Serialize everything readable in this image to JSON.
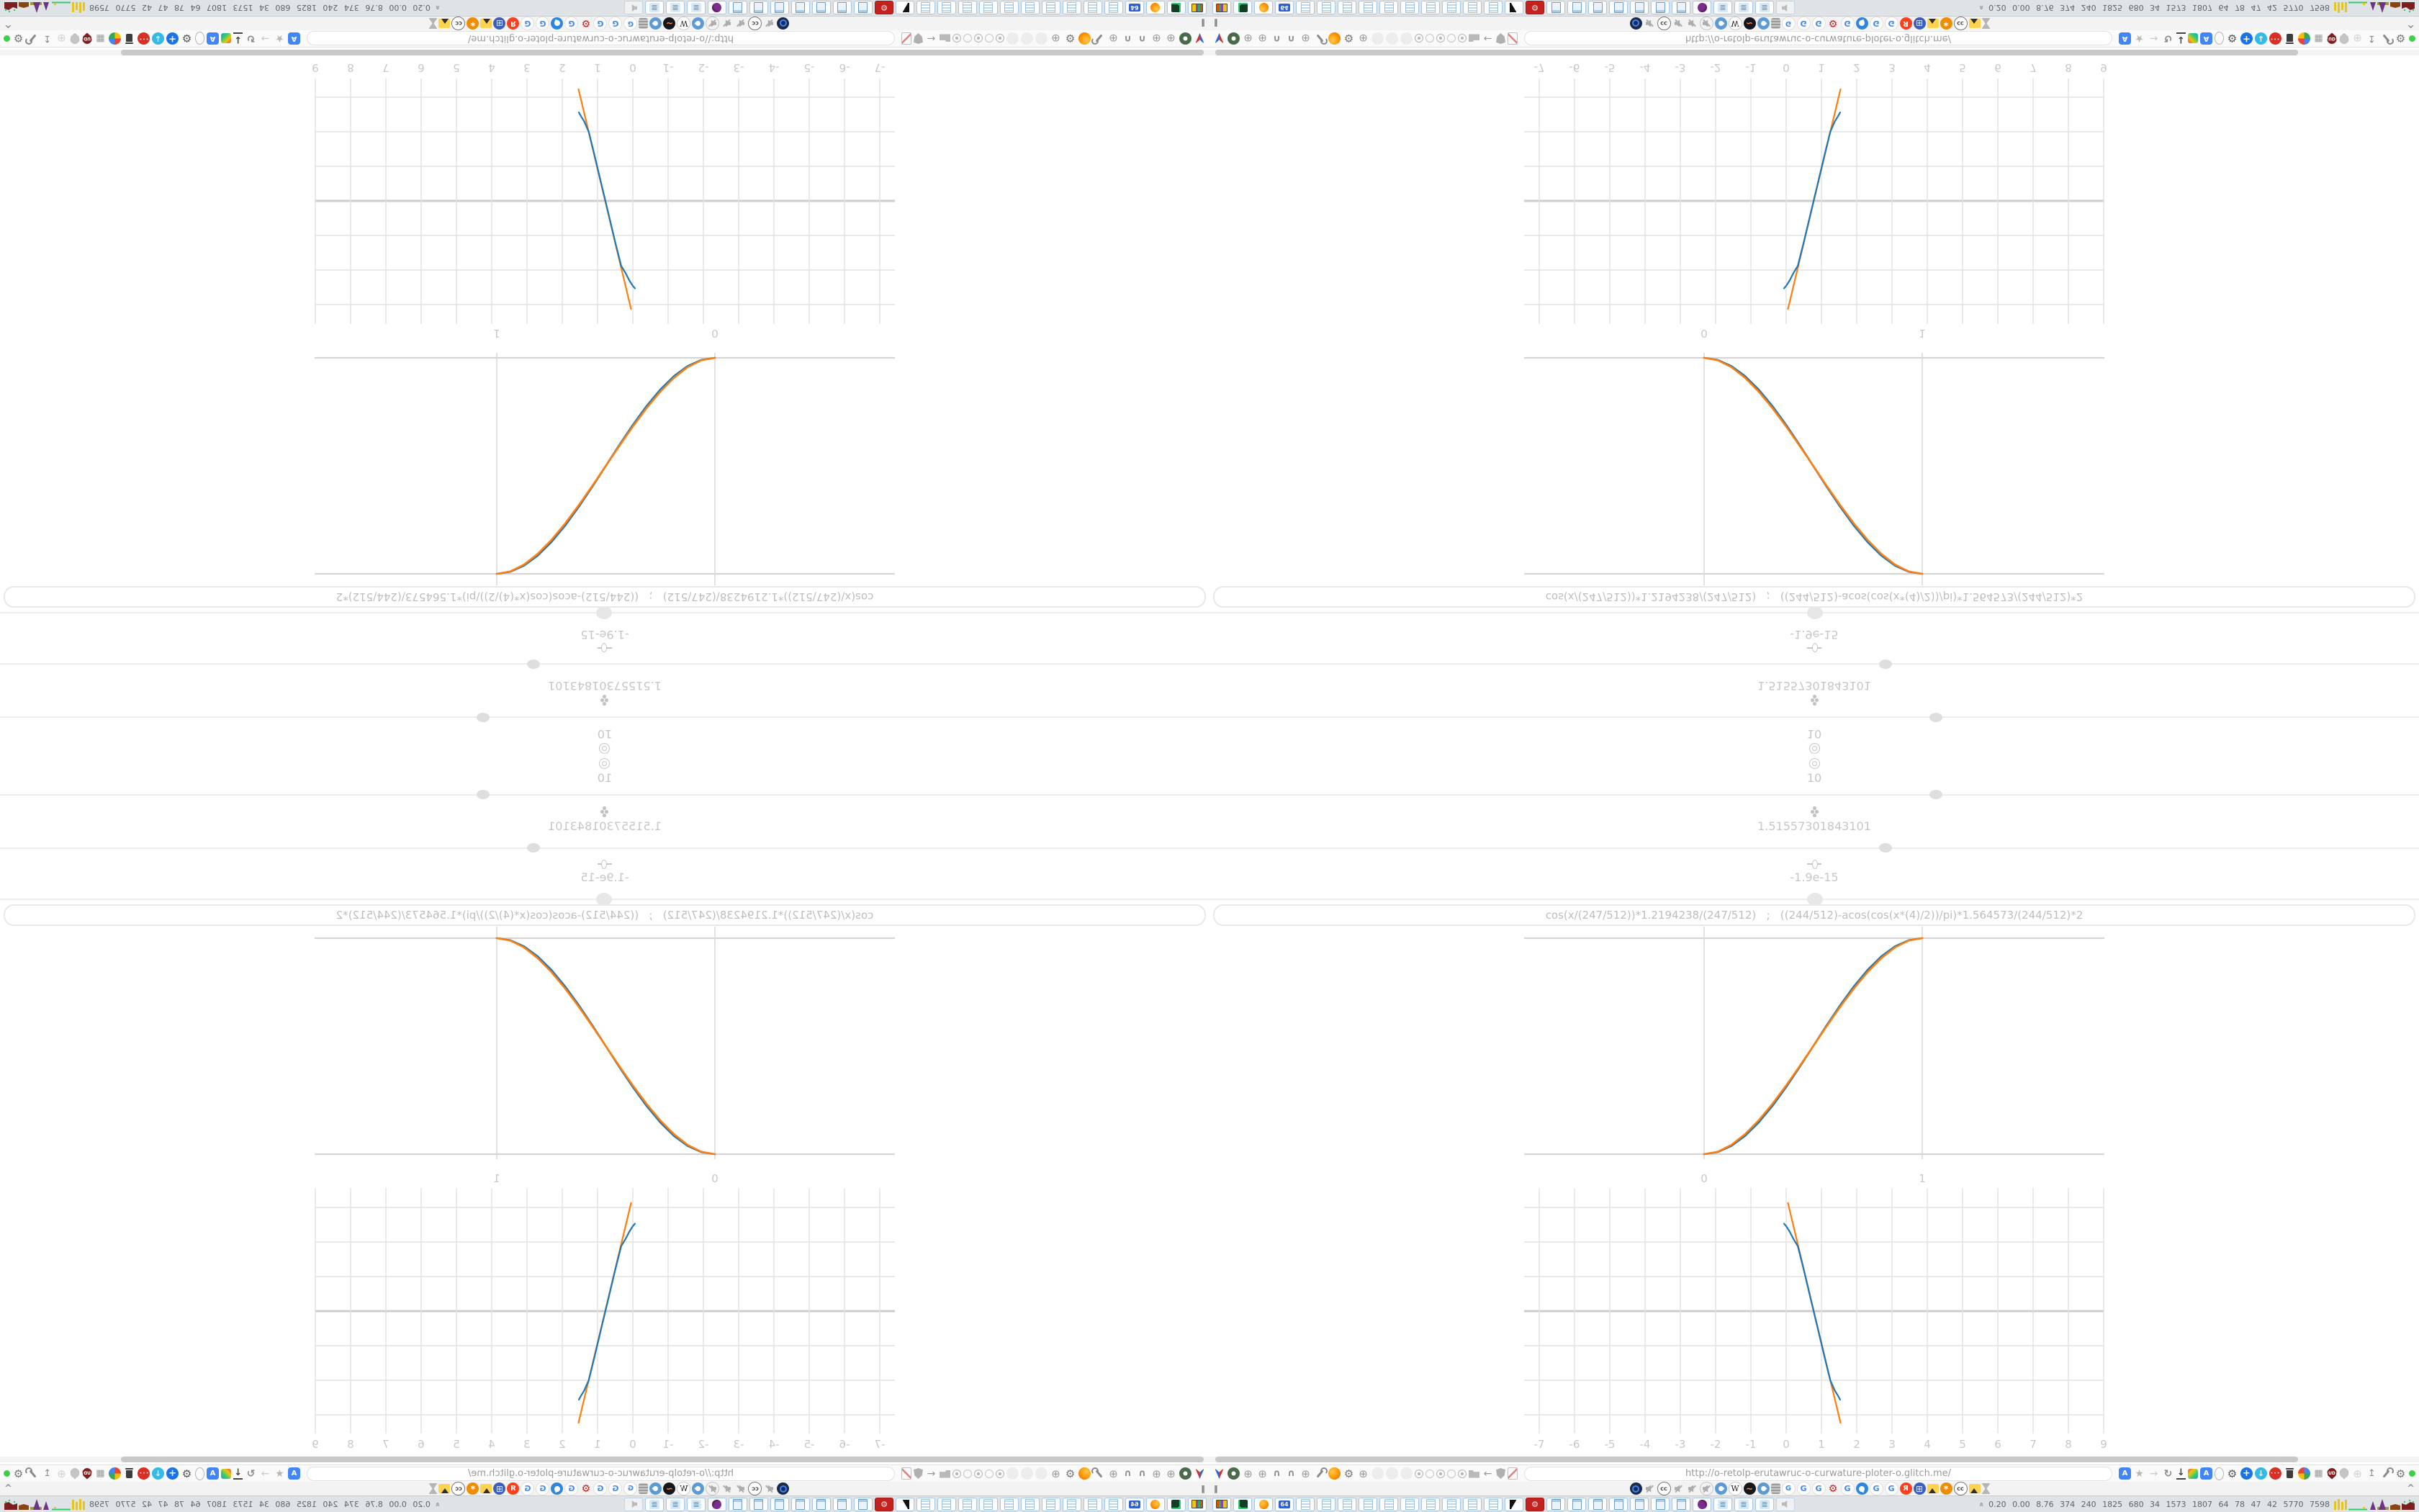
{
  "window": {
    "url": "http://o-retolp-erutawruc-o-curwature-ploter-o.glitch.me/"
  },
  "plotter": {
    "node_top": {
      "icon": "target",
      "value": "10"
    },
    "node_mid": {
      "icon": "clover",
      "value": "1.51557301843101"
    },
    "node_low": {
      "icon": "mirror",
      "value": "-1.9e-15"
    },
    "expression": "cos(x/(247/512))*1.2194238/(247/512)   ;   ((244/512)-acos(cos(x*(4)/2))/pi)*1.564573/(244/512)*2"
  },
  "chart_data": [
    {
      "type": "line",
      "title": "",
      "xlabel": "",
      "ylabel": "",
      "xticks": [
        0,
        1
      ],
      "hlines": [
        0,
        1
      ],
      "ylim": [
        -0.05,
        1.05
      ],
      "grid": "partial",
      "legend": "none",
      "series": [
        {
          "name": "blue-ease-curve",
          "color": "#1f77b4",
          "x": [
            0,
            0.0625,
            0.125,
            0.1875,
            0.25,
            0.3125,
            0.375,
            0.4375,
            0.5,
            0.5625,
            0.625,
            0.6875,
            0.75,
            0.8125,
            0.875,
            0.9375,
            1
          ],
          "y": [
            0,
            0.0096,
            0.0381,
            0.0843,
            0.1464,
            0.2222,
            0.3087,
            0.4025,
            0.5,
            0.5975,
            0.6913,
            0.7778,
            0.8536,
            0.9157,
            0.9619,
            0.9904,
            1
          ]
        },
        {
          "name": "orange-smoothstep-curve",
          "color": "#ff7f0e",
          "x": [
            0,
            0.0625,
            0.125,
            0.1875,
            0.25,
            0.3125,
            0.375,
            0.4375,
            0.5,
            0.5625,
            0.625,
            0.6875,
            0.75,
            0.8125,
            0.875,
            0.9375,
            1
          ],
          "y": [
            0,
            0.0112,
            0.043,
            0.0923,
            0.1563,
            0.2319,
            0.3164,
            0.4067,
            0.5,
            0.5933,
            0.6836,
            0.7681,
            0.8438,
            0.9077,
            0.957,
            0.9888,
            1
          ]
        }
      ]
    },
    {
      "type": "line",
      "title": "",
      "xlabel": "",
      "ylabel": "",
      "xticks": [
        -7,
        -6,
        -5,
        -4,
        -3,
        -2,
        -1,
        0,
        1,
        2,
        3,
        4,
        5,
        6,
        7,
        8,
        9
      ],
      "ygrid": [
        -3,
        -2,
        -1,
        0,
        1,
        2,
        3
      ],
      "ylim": [
        -3.6,
        3.6
      ],
      "grid": "on",
      "legend": "none",
      "series": [
        {
          "name": "orange-tangent-line",
          "color": "#ff7f0e",
          "x": [
            0.05,
            1.54
          ],
          "y": [
            3.13,
            -3.23
          ]
        },
        {
          "name": "blue-curve",
          "color": "#1f77b4",
          "x": [
            -0.06,
            0,
            0.1,
            0.2,
            0.33,
            0.5,
            0.7,
            0.9,
            1.1,
            1.25,
            1.38,
            1.47,
            1.53
          ],
          "y": [
            2.53,
            2.46,
            2.3,
            2.1,
            1.88,
            1.19,
            0.33,
            -0.52,
            -1.38,
            -2.0,
            -2.3,
            -2.45,
            -2.56
          ]
        }
      ]
    }
  ],
  "browser": {
    "toolbar_left_icons": [
      "pin-v",
      "donut",
      "globe",
      "globe",
      "headphones",
      "headphones",
      "globe",
      "wrench",
      "firefox",
      "gear",
      "globe",
      "faded",
      "faded",
      "faded",
      "dotcircle",
      "circle",
      "dotcircle",
      "circle",
      "dotcircle",
      "folder",
      "arrow-left",
      "shield",
      "page-slash"
    ],
    "toolbar_right_icons": [
      "translate",
      "star",
      "arrow-right",
      "reload",
      "download",
      "brush",
      "translate",
      "oval",
      "gear-dark",
      "plus-blue",
      "update",
      "red-dots",
      "trash",
      "netwheel",
      "building",
      "shield-ud",
      "shield-gray",
      "globe-faded",
      "share",
      "wrench",
      "gear",
      "green-dot"
    ],
    "tab_favicons": [
      "disc",
      "speaker",
      "cc",
      "speaker",
      "speaker",
      "speaker-circle",
      "bird",
      "wikipedia",
      "waveform",
      "bird",
      "barrel",
      "translate-g",
      "google",
      "google",
      "gear-red",
      "google",
      "fish",
      "google",
      "google",
      "yandex",
      "globe-grid",
      "photo",
      "sun",
      "cc",
      "photo",
      "hourglass"
    ],
    "pause_glyph": "‖",
    "collapse_glyph": "^"
  },
  "taskbar": {
    "buttons": [
      "monitor",
      "terminal",
      "firefox",
      "floppy",
      "notepad",
      "notepad",
      "notepad",
      "notepad",
      "notepad",
      "notepad",
      "notepad",
      "notepad",
      "notepad",
      "notepad",
      "bolt",
      "redwheel",
      "calc",
      "calc",
      "calc",
      "calc",
      "calc",
      "calc",
      "calc",
      "owl",
      "scroll",
      "scroll",
      "scroll",
      "speaker-muted"
    ],
    "stats": [
      "0.20",
      "0.00",
      "8.76",
      "374",
      "240",
      "1825",
      "680",
      "34",
      "1573",
      "1807",
      "64",
      "78",
      "47",
      "42",
      "5770",
      "7598"
    ]
  },
  "colors": {
    "series_blue": "#1f77b4",
    "series_orange": "#ff7f0e",
    "grid": "#e2e2e2",
    "axis_emphasis": "#cdcdcd",
    "tick_label": "#c7c7c7",
    "value_text": "#c6c6c6"
  }
}
